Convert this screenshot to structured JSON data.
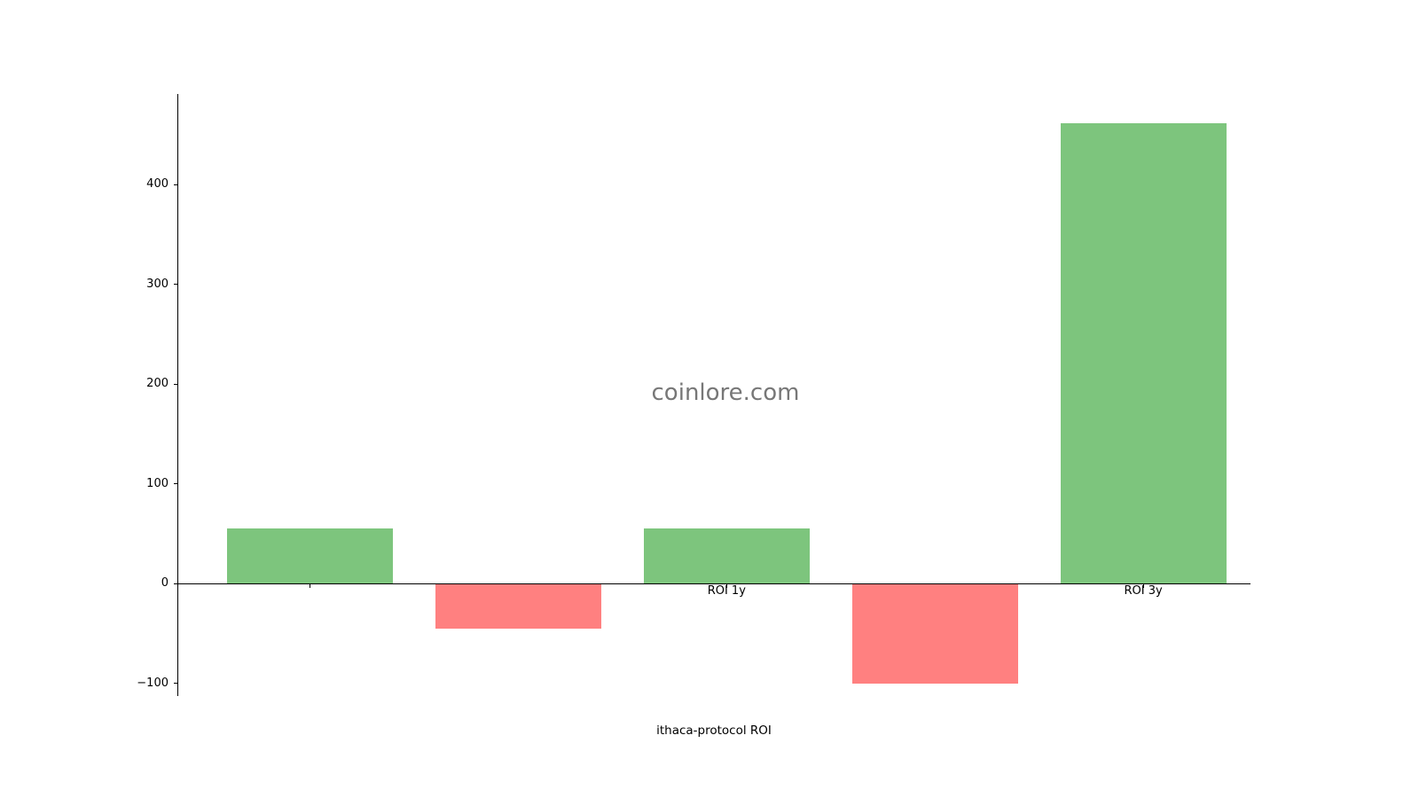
{
  "watermark": "coinlore.com",
  "chart_data": {
    "type": "bar",
    "title": "ithaca-protocol ROI",
    "categories": [
      "",
      "",
      "ROI 1y",
      "",
      "ROI 3y"
    ],
    "values": [
      55,
      -44.5,
      55,
      -99.5,
      461
    ],
    "positive_color": "#7dc57d",
    "negative_color": "#ff8080",
    "yticks": [
      400,
      300,
      200,
      100,
      0,
      -100
    ],
    "ylim": [
      -113,
      491
    ],
    "xlabel": "",
    "ylabel": "",
    "grid": false,
    "legend": false,
    "watermark": "coinlore.com",
    "axis_color": "#000000",
    "text_color": "#000000",
    "watermark_color": "#777777"
  }
}
